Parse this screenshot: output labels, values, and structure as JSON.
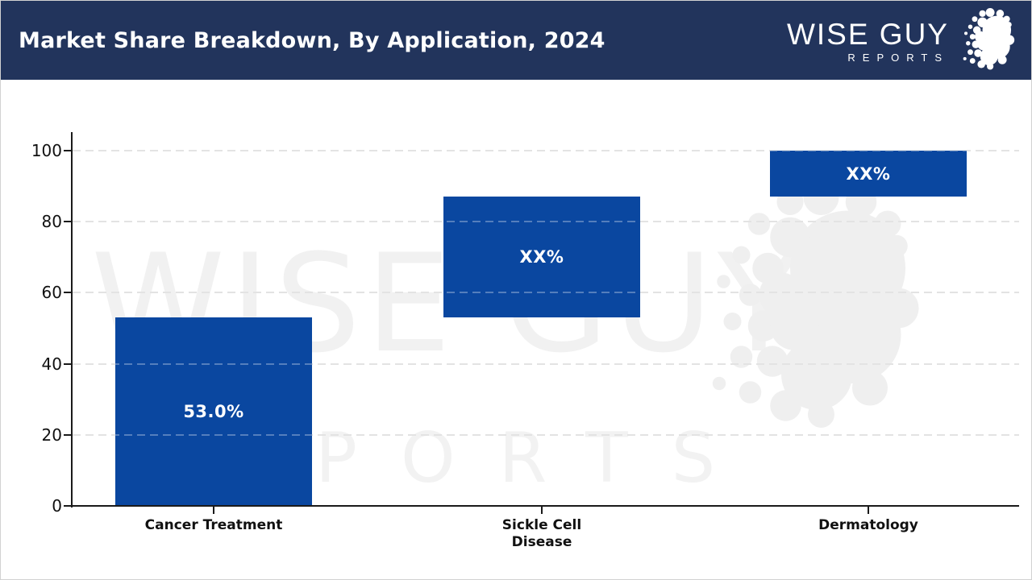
{
  "header": {
    "title": "Market Share Breakdown, By Application, 2024",
    "logo": {
      "line1": "WISE GUY",
      "line2": "REPORTS"
    }
  },
  "watermark": {
    "line1": "WISE GUY",
    "line2": "REPORTS"
  },
  "colors": {
    "header_bg": "#22345c",
    "bar": "#0a47a0",
    "bar_label": "#ffffff",
    "axis": "#1a1a1a",
    "grid": "#d7d7d7",
    "watermark": "#f1f1f1",
    "canvas_border": "#d2d2d2"
  },
  "chart_data": {
    "type": "bar",
    "subtype": "floating-waterfall",
    "title": "Market Share Breakdown, By Application, 2024",
    "categories": [
      "Cancer Treatment",
      "Sickle Cell\nDisease",
      "Dermatology"
    ],
    "series": [
      {
        "name": "Market share (%)",
        "segments": [
          {
            "category": "Cancer Treatment",
            "start": 0,
            "end": 53,
            "label": "53.0%"
          },
          {
            "category": "Sickle Cell Disease",
            "start": 53,
            "end": 87,
            "label": "XX%"
          },
          {
            "category": "Dermatology",
            "start": 87,
            "end": 100,
            "label": "XX%"
          }
        ]
      }
    ],
    "ylim": [
      0,
      100
    ],
    "yticks": [
      0,
      20,
      40,
      60,
      80,
      100
    ],
    "xlabel": "",
    "ylabel": "",
    "grid": "horizontal-dashed",
    "legend": "none"
  }
}
